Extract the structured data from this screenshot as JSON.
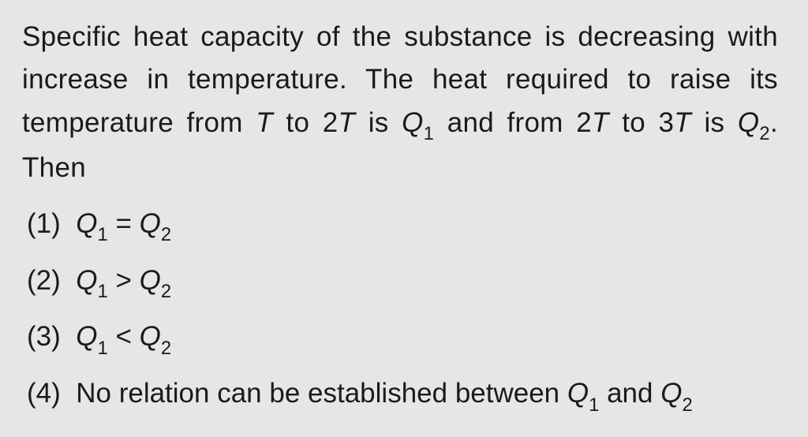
{
  "question": {
    "part1": "Specific heat capacity of the substance is decreasing with increase in temperature. The heat required to raise its temperature from ",
    "T": "T",
    "to1": " to 2",
    "T2": "T",
    "is1": " is ",
    "Q": "Q",
    "sub1": "1",
    "andfrom": " and from 2",
    "T3": "T",
    "to2": " to 3",
    "T4": "T",
    "is2": " is ",
    "Q2": "Q",
    "sub2": "2",
    "then": ". Then"
  },
  "options": {
    "o1": {
      "num": "(1)",
      "l": "Q",
      "ls": "1",
      "op": " = ",
      "r": "Q",
      "rs": "2"
    },
    "o2": {
      "num": "(2)",
      "l": "Q",
      "ls": "1",
      "op": " > ",
      "r": "Q",
      "rs": "2"
    },
    "o3": {
      "num": "(3)",
      "l": "Q",
      "ls": "1",
      "op": " < ",
      "r": "Q",
      "rs": "2"
    },
    "o4": {
      "num": "(4)",
      "text1": "No relation can be established between ",
      "q1": "Q",
      "q1s": "1",
      "and": " and ",
      "q2": "Q",
      "q2s": "2"
    }
  },
  "style": {
    "background": "#e8e6e4",
    "textColor": "#1a1a1a",
    "fontSize": 35,
    "fontFamily": "Arial, Helvetica, sans-serif"
  }
}
